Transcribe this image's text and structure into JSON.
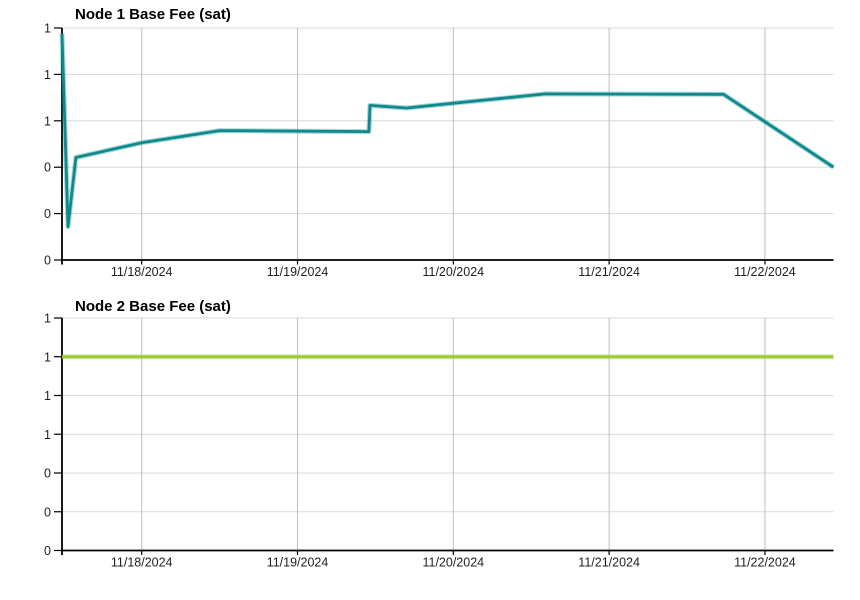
{
  "page": {
    "background": "#ffffff"
  },
  "colors": {
    "h_gridline": "#d9d9d9",
    "v_gridline": "#bfbfbf",
    "axis": "#000000",
    "tick_label": "#1f1f1f",
    "title": "#000000"
  },
  "chart_data": [
    {
      "type": "line",
      "title": "Node 1 Base Fee (sat)",
      "xlabel": "",
      "ylabel": "",
      "legend_position": "none",
      "grid": true,
      "ylim": [
        0,
        1.25
      ],
      "x_domain_days": [
        0.4885,
        5.44
      ],
      "x_ticks": [
        {
          "day": 1,
          "label": "11/18/2024"
        },
        {
          "day": 2,
          "label": "11/19/2024"
        },
        {
          "day": 3,
          "label": "11/20/2024"
        },
        {
          "day": 4,
          "label": "11/21/2024"
        },
        {
          "day": 5,
          "label": "11/22/2024"
        }
      ],
      "y_ticks": [
        {
          "value": 1.25,
          "label": "1"
        },
        {
          "value": 1.0,
          "label": "1"
        },
        {
          "value": 0.75,
          "label": "1"
        },
        {
          "value": 0.5,
          "label": "0"
        },
        {
          "value": 0.25,
          "label": "0"
        },
        {
          "value": 0.0,
          "label": "0"
        }
      ],
      "series": [
        {
          "name": "Node 1 base fee",
          "color": "#0f8a8c",
          "stroke_width": 2.8,
          "points": [
            [
              0.4885,
              1.22
            ],
            [
              0.527,
              0.18
            ],
            [
              0.578,
              0.552
            ],
            [
              1.0,
              0.632
            ],
            [
              1.5,
              0.697
            ],
            [
              2.458,
              0.692
            ],
            [
              2.465,
              0.833
            ],
            [
              2.7,
              0.819
            ],
            [
              3.59,
              0.895
            ],
            [
              4.734,
              0.893
            ],
            [
              5.44,
              0.5
            ]
          ]
        }
      ]
    },
    {
      "type": "line",
      "title": "Node 2 Base Fee (sat)",
      "xlabel": "",
      "ylabel": "",
      "legend_position": "none",
      "grid": true,
      "ylim": [
        0,
        1.2
      ],
      "x_domain_days": [
        0.4885,
        5.44
      ],
      "x_ticks": [
        {
          "day": 1,
          "label": "11/18/2024"
        },
        {
          "day": 2,
          "label": "11/19/2024"
        },
        {
          "day": 3,
          "label": "11/20/2024"
        },
        {
          "day": 4,
          "label": "11/21/2024"
        },
        {
          "day": 5,
          "label": "11/22/2024"
        }
      ],
      "y_ticks": [
        {
          "value": 1.2,
          "label": "1"
        },
        {
          "value": 1.0,
          "label": "1"
        },
        {
          "value": 0.8,
          "label": "1"
        },
        {
          "value": 0.6,
          "label": "1"
        },
        {
          "value": 0.4,
          "label": "0"
        },
        {
          "value": 0.2,
          "label": "0"
        },
        {
          "value": 0.0,
          "label": "0"
        }
      ],
      "series": [
        {
          "name": "Node 2 base fee",
          "color": "#9ccb3a",
          "stroke_width": 3.0,
          "points": [
            [
              0.4885,
              1.0
            ],
            [
              5.44,
              1.0
            ]
          ]
        }
      ]
    }
  ]
}
